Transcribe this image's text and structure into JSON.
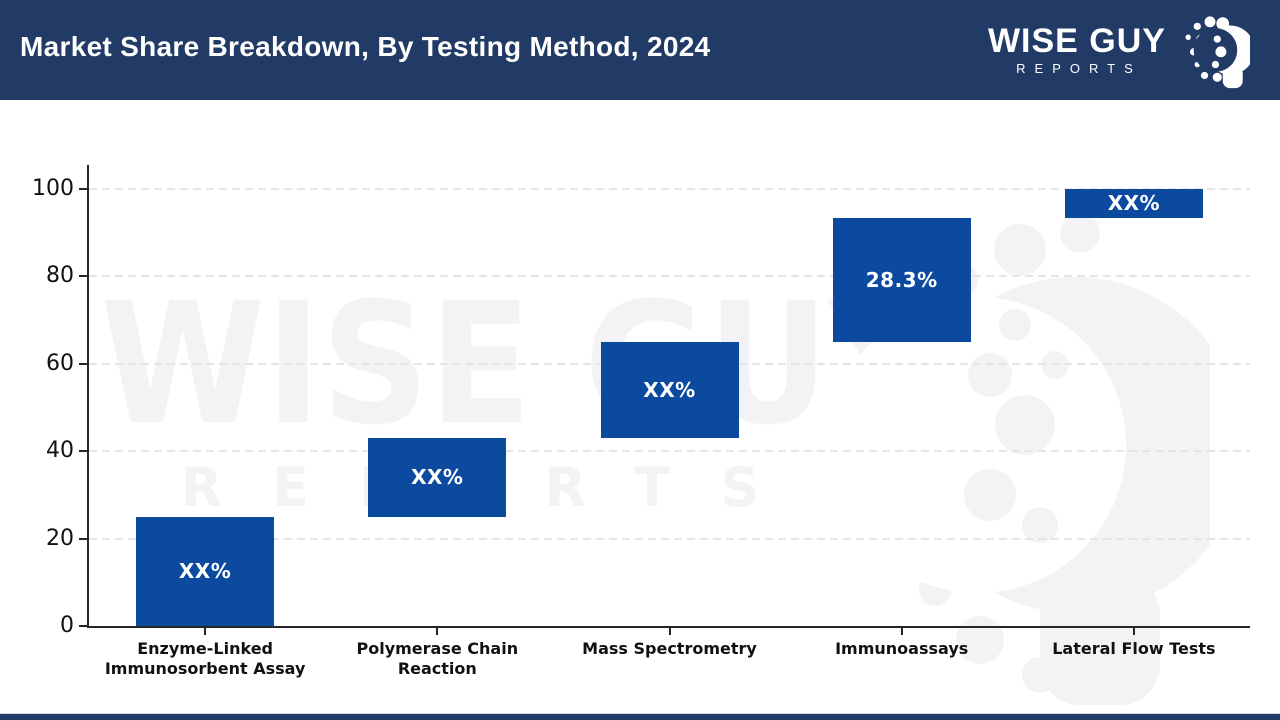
{
  "header": {
    "title": "Market Share Breakdown, By Testing Method, 2024",
    "logo": {
      "name": "WISE GUY",
      "sub": "REPORTS"
    }
  },
  "watermark": {
    "name": "WISE GUY",
    "sub": "REPORTS"
  },
  "chart_data": {
    "type": "bar",
    "variant": "waterfall-stacked-percentage",
    "title": "Market Share Breakdown, By Testing Method, 2024",
    "categories": [
      "Enzyme-Linked Immunosorbent Assay",
      "Polymerase Chain Reaction",
      "Mass Spectrometry",
      "Immunoassays",
      "Lateral Flow Tests"
    ],
    "bars": [
      {
        "category": "Enzyme-Linked Immunosorbent Assay",
        "start": 0,
        "end": 25,
        "label": "XX%"
      },
      {
        "category": "Polymerase Chain Reaction",
        "start": 25,
        "end": 43,
        "label": "XX%"
      },
      {
        "category": "Mass Spectrometry",
        "start": 43,
        "end": 65,
        "label": "XX%"
      },
      {
        "category": "Immunoassays",
        "start": 65,
        "end": 93.3,
        "label": "28.3%"
      },
      {
        "category": "Lateral Flow Tests",
        "start": 93.3,
        "end": 100,
        "label": "XX%"
      }
    ],
    "xlabel": "",
    "ylabel": "",
    "yticks": [
      0,
      20,
      40,
      60,
      80,
      100
    ],
    "ylim": [
      0,
      105.4
    ],
    "grid": {
      "axis": "y",
      "style": "dashed",
      "color": "#e5e5e5"
    },
    "legend": "none"
  },
  "colors": {
    "header_bg": "#213a66",
    "footer_bg": "#213a66",
    "bar": "#0b4a9e",
    "bar_label": "#ffffff",
    "axis": "#262626",
    "tick_label": "#111111",
    "grid": "#e5e5e5",
    "watermark": "#f3f3f5"
  }
}
